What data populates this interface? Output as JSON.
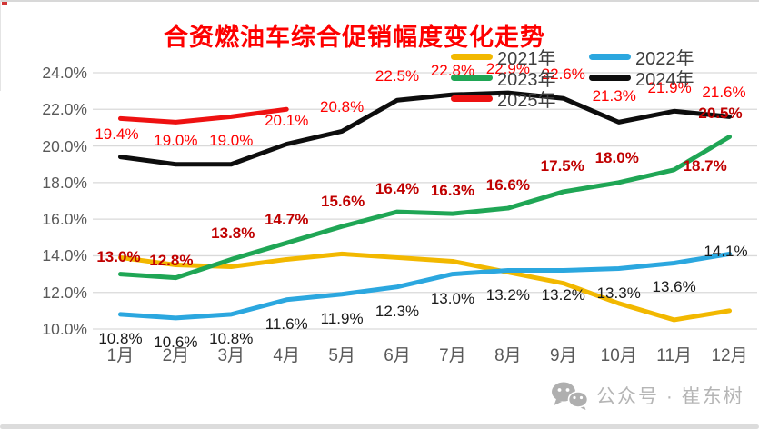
{
  "title": "合资燃油车综合促销幅度变化走势",
  "watermark": {
    "text": "公众号 · 崔东树"
  },
  "axes": {
    "y_ticks": [
      "24.0%",
      "22.0%",
      "20.0%",
      "18.0%",
      "16.0%",
      "14.0%",
      "12.0%",
      "10.0%"
    ],
    "x_ticks": [
      "1月",
      "2月",
      "3月",
      "4月",
      "5月",
      "6月",
      "7月",
      "8月",
      "9月",
      "10月",
      "11月",
      "12月"
    ]
  },
  "colors": {
    "title_red": "#fe0000",
    "label_red": "#ff0000",
    "label_dark_red": "#c00000",
    "label_black": "#1a1a1a",
    "axis_text": "#595959",
    "gridline": "#d9d9d9"
  },
  "chart_data": {
    "type": "line",
    "title": "合资燃油车综合促销幅度变化走势",
    "categories": [
      "1月",
      "2月",
      "3月",
      "4月",
      "5月",
      "6月",
      "7月",
      "8月",
      "9月",
      "10月",
      "11月",
      "12月"
    ],
    "ylim": [
      10,
      24
    ],
    "y_tick_step": 2,
    "grid": true,
    "legend_position": "top-right",
    "series": [
      {
        "name": "2021年",
        "color": "#f2b800",
        "values": [
          13.9,
          13.5,
          13.4,
          13.8,
          14.1,
          13.9,
          13.7,
          13.1,
          12.5,
          11.4,
          10.5,
          11.0
        ],
        "labels_shown": false,
        "label_style": "none"
      },
      {
        "name": "2022年",
        "color": "#2ba7df",
        "values": [
          10.8,
          10.6,
          10.8,
          11.6,
          11.9,
          12.3,
          13.0,
          13.2,
          13.2,
          13.3,
          13.6,
          14.1
        ],
        "labels_shown": true,
        "label_style": "black"
      },
      {
        "name": "2023年",
        "color": "#1fa655",
        "values": [
          13.0,
          12.8,
          13.8,
          14.7,
          15.6,
          16.4,
          16.3,
          16.6,
          17.5,
          18.0,
          18.7,
          20.5
        ],
        "labels_shown": true,
        "label_style": "dark-red-bold"
      },
      {
        "name": "2024年",
        "color": "#0d0d0d",
        "values": [
          19.4,
          19.0,
          19.0,
          20.1,
          20.8,
          22.5,
          22.8,
          22.9,
          22.6,
          21.3,
          21.9,
          21.6
        ],
        "labels_shown": true,
        "label_style": "red"
      },
      {
        "name": "2025年",
        "color": "#ee1111",
        "values": [
          21.5,
          21.3,
          21.6,
          22.0
        ],
        "labels_shown": false,
        "label_style": "none"
      }
    ]
  }
}
